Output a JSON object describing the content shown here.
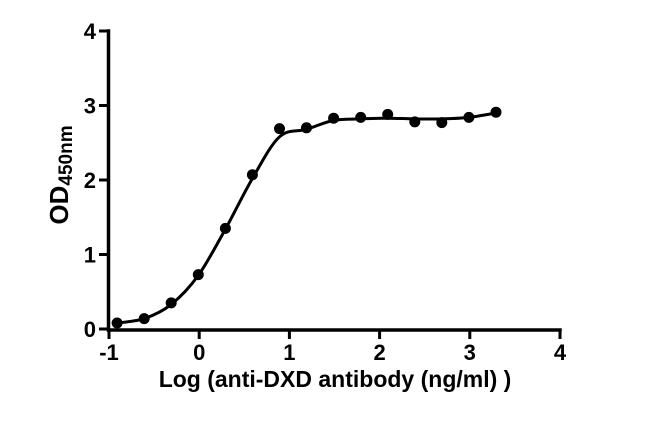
{
  "chart_data": {
    "type": "scatter",
    "title": "",
    "xlabel": "Log (anti-DXD antibody (ng/ml) )",
    "ylabel_main": "OD",
    "ylabel_sub": "450nm",
    "xlim": [
      -1,
      4
    ],
    "ylim": [
      0,
      4
    ],
    "x_ticks": [
      -1,
      0,
      1,
      2,
      3,
      4
    ],
    "y_ticks": [
      0,
      1,
      2,
      3,
      4
    ],
    "grid": false,
    "legend": "none",
    "marker_color": "#000000",
    "line_color": "#000000",
    "axis_color": "#000000",
    "background_color": "#ffffff",
    "points": [
      [
        -0.91,
        0.08
      ],
      [
        -0.61,
        0.14
      ],
      [
        -0.31,
        0.35
      ],
      [
        -0.01,
        0.73
      ],
      [
        0.29,
        1.35
      ],
      [
        0.59,
        2.07
      ],
      [
        0.89,
        2.69
      ],
      [
        1.19,
        2.7
      ],
      [
        1.49,
        2.83
      ],
      [
        1.79,
        2.84
      ],
      [
        2.09,
        2.88
      ],
      [
        2.39,
        2.78
      ],
      [
        2.69,
        2.77
      ],
      [
        2.99,
        2.84
      ],
      [
        3.29,
        2.91
      ]
    ],
    "fit_curve_anchors": [
      [
        -0.91,
        0.08
      ],
      [
        -0.61,
        0.14
      ],
      [
        -0.31,
        0.33
      ],
      [
        -0.01,
        0.72
      ],
      [
        0.29,
        1.34
      ],
      [
        0.59,
        2.02
      ],
      [
        0.89,
        2.58
      ],
      [
        1.19,
        2.68
      ],
      [
        1.49,
        2.8
      ],
      [
        1.79,
        2.82
      ],
      [
        2.09,
        2.83
      ],
      [
        2.39,
        2.82
      ],
      [
        2.69,
        2.82
      ],
      [
        2.99,
        2.84
      ],
      [
        3.29,
        2.9
      ]
    ]
  }
}
